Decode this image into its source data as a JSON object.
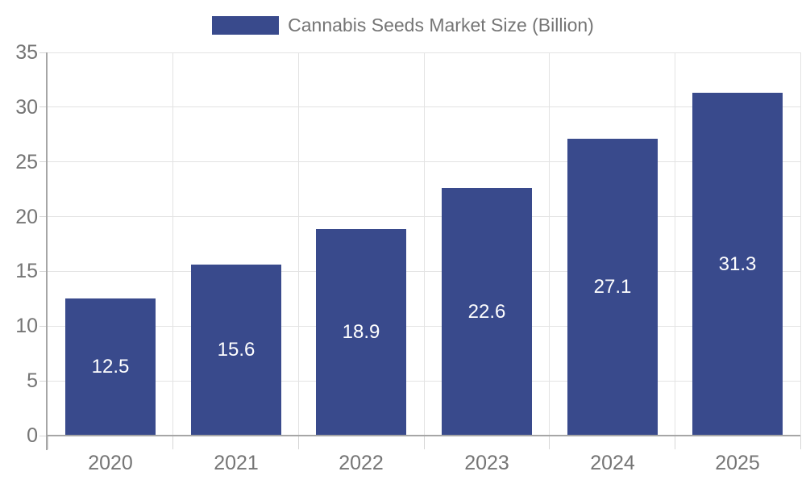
{
  "legend": {
    "label": "Cannabis Seeds Market Size (Billion)"
  },
  "colors": {
    "bar": "#394a8c",
    "axis_line": "#a6a6a6",
    "gridline": "#e3e3e3",
    "tick": "#d6d6d6",
    "axis_text": "#757575",
    "value_label_text": "#ffffff",
    "background": "#ffffff"
  },
  "chart_data": {
    "type": "bar",
    "title": "Cannabis Seeds Market Size (Billion)",
    "categories": [
      "2020",
      "2021",
      "2022",
      "2023",
      "2024",
      "2025"
    ],
    "values": [
      12.5,
      15.6,
      18.9,
      22.6,
      27.1,
      31.3
    ],
    "series": [
      {
        "name": "Cannabis Seeds Market Size (Billion)",
        "values": [
          12.5,
          15.6,
          18.9,
          22.6,
          27.1,
          31.3
        ]
      }
    ],
    "xlabel": "",
    "ylabel": "",
    "ylim": [
      0,
      35
    ],
    "yticks": [
      0,
      5,
      10,
      15,
      20,
      25,
      30,
      35
    ],
    "grid": true,
    "legend_position": "top-center",
    "value_label_position": "inside-center"
  }
}
